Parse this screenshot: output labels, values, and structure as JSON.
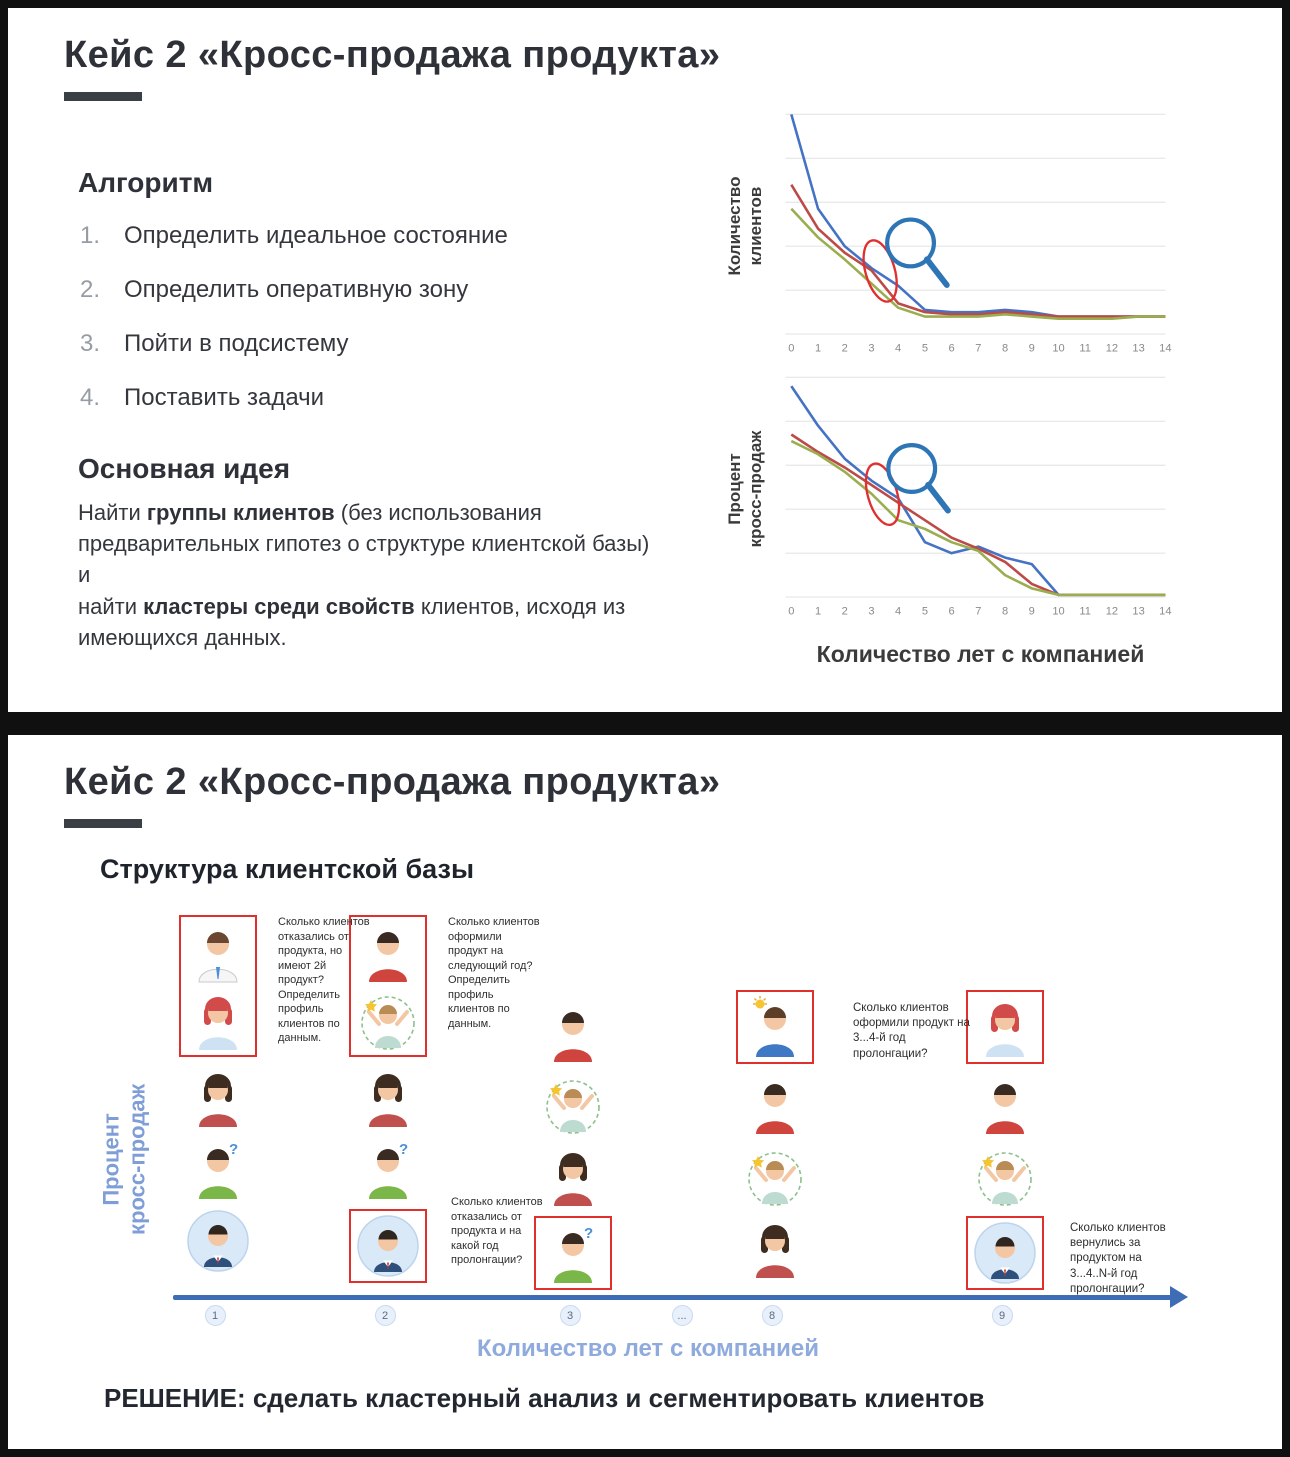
{
  "slide1": {
    "title": "Кейс 2 «Кросс-продажа продукта»",
    "algorithm": {
      "heading": "Алгоритм",
      "items": [
        "Определить идеальное состояние",
        "Определить оперативную зону",
        "Пойти в подсистему",
        "Поставить задачи"
      ]
    },
    "idea": {
      "heading": "Основная идея",
      "p1": "Найти ",
      "b1": "группы клиентов",
      "p2": " (без использования предварительных гипотез о структуре клиентской базы) и",
      "p2b": "найти ",
      "b2": "кластеры среди свойств",
      "p3": " клиентов, исходя из имеющихся данных."
    },
    "x_caption": "Количество лет с компанией"
  },
  "chart_data": [
    {
      "type": "line",
      "title": "",
      "ylabel": "Количество клиентов",
      "ylabel_lines": [
        "Количество",
        "клиентов"
      ],
      "xlabel": "Количество лет с компанией",
      "x": [
        0,
        1,
        2,
        3,
        4,
        5,
        6,
        7,
        8,
        9,
        10,
        11,
        12,
        13,
        14
      ],
      "ylim": [
        0,
        100
      ],
      "grid": "horizontal",
      "legend": "none",
      "annotations": [
        "red-ellipse",
        "magnifier"
      ],
      "series": [
        {
          "name": "blue",
          "color": "#4472c4",
          "values": [
            100,
            57,
            40,
            30,
            22,
            11,
            10,
            10,
            11,
            10,
            8,
            8,
            8,
            8,
            8
          ]
        },
        {
          "name": "red",
          "color": "#bc4a47",
          "values": [
            68,
            48,
            37,
            29,
            14,
            10,
            9,
            9,
            10,
            9,
            8,
            8,
            8,
            8,
            8
          ]
        },
        {
          "name": "olive",
          "color": "#9aae4f",
          "values": [
            57,
            44,
            34,
            23,
            12,
            8,
            8,
            8,
            9,
            8,
            7,
            7,
            7,
            8,
            8
          ]
        }
      ]
    },
    {
      "type": "line",
      "title": "",
      "ylabel": "Процент кросс-продаж",
      "ylabel_lines": [
        "Процент",
        "кросс-продаж"
      ],
      "xlabel": "Количество лет с компанией",
      "x": [
        0,
        1,
        2,
        3,
        4,
        5,
        6,
        7,
        8,
        9,
        10,
        11,
        12,
        13,
        14
      ],
      "ylim": [
        0,
        100
      ],
      "grid": "horizontal",
      "legend": "none",
      "annotations": [
        "red-ellipse",
        "magnifier"
      ],
      "series": [
        {
          "name": "blue",
          "color": "#4472c4",
          "values": [
            96,
            78,
            63,
            53,
            45,
            25,
            20,
            23,
            18,
            15,
            1,
            1,
            1,
            1,
            1
          ]
        },
        {
          "name": "red",
          "color": "#bc4a47",
          "values": [
            74,
            66,
            59,
            51,
            43,
            35,
            27,
            22,
            16,
            6,
            1,
            1,
            1,
            1,
            1
          ]
        },
        {
          "name": "olive",
          "color": "#9aae4f",
          "values": [
            71,
            65,
            57,
            47,
            35,
            31,
            25,
            21,
            10,
            4,
            1,
            1,
            1,
            1,
            1
          ]
        }
      ]
    }
  ],
  "slide2": {
    "title": "Кейс 2 «Кросс-продажа продукта»",
    "subtitle": "Структура клиентской базы",
    "y_label": "Процент кросс-продаж",
    "y_label_line1": "Процент",
    "y_label_line2": "кросс-продаж",
    "x_caption": "Количество лет с компанией",
    "solution": "РЕШЕНИЕ: сделать кластерный анализ и сегментировать клиентов",
    "axis_ticks": [
      "1",
      "2",
      "3",
      "...",
      "8",
      "9"
    ],
    "annotations": [
      "Сколько клиентов отказались от продукта, но имеют 2й продукт? Определить профиль клиентов по данным.",
      "Сколько клиентов оформили продукт на следующий год? Определить профиль клиентов по данным.",
      "Сколько клиентов отказались от продукта и на какой год пролонгации?",
      "Сколько клиентов оформили продукт на 3...4-й год пролонгации?",
      "Сколько клиентов вернулись за продуктом на 3...4..N-й год пролонгации?"
    ],
    "columns": [
      {
        "tick": "1",
        "cells": [
          {
            "people": [
              "man-doctor",
              "woman-redhead"
            ],
            "boxed": true
          },
          {
            "people": [
              "woman-dark"
            ]
          },
          {
            "people": [
              "man-question"
            ]
          },
          {
            "people": [
              "avatar-male"
            ]
          }
        ]
      },
      {
        "tick": "2",
        "cells": [
          {
            "people": [
              "man-red",
              "star-person"
            ],
            "boxed": true
          },
          {
            "people": [
              "woman-dark"
            ]
          },
          {
            "people": [
              "man-question"
            ]
          },
          {
            "people": [
              "avatar-male"
            ],
            "boxed": true
          }
        ]
      },
      {
        "tick": "3",
        "cells": [
          {
            "people": [
              "man-red"
            ]
          },
          {
            "people": [
              "star-person"
            ]
          },
          {
            "people": [
              "woman-dark"
            ]
          },
          {
            "people": [
              "man-question"
            ],
            "boxed": true
          }
        ]
      },
      {
        "tick": "8",
        "cells": [
          {
            "people": [
              "idea-person"
            ],
            "boxed": true
          },
          {
            "people": [
              "man-red"
            ]
          },
          {
            "people": [
              "star-person"
            ]
          },
          {
            "people": [
              "woman-dark"
            ]
          }
        ]
      },
      {
        "tick": "9",
        "cells": [
          {
            "people": [
              "woman-redhead"
            ],
            "boxed": true
          },
          {
            "people": [
              "man-red"
            ]
          },
          {
            "people": [
              "star-person"
            ]
          },
          {
            "people": [
              "avatar-male"
            ],
            "boxed": true
          }
        ]
      }
    ],
    "colors": {
      "axis_blue": "#3e6cb5",
      "label_blue": "#7f9ed7",
      "highlight_red": "#e0302e"
    }
  }
}
